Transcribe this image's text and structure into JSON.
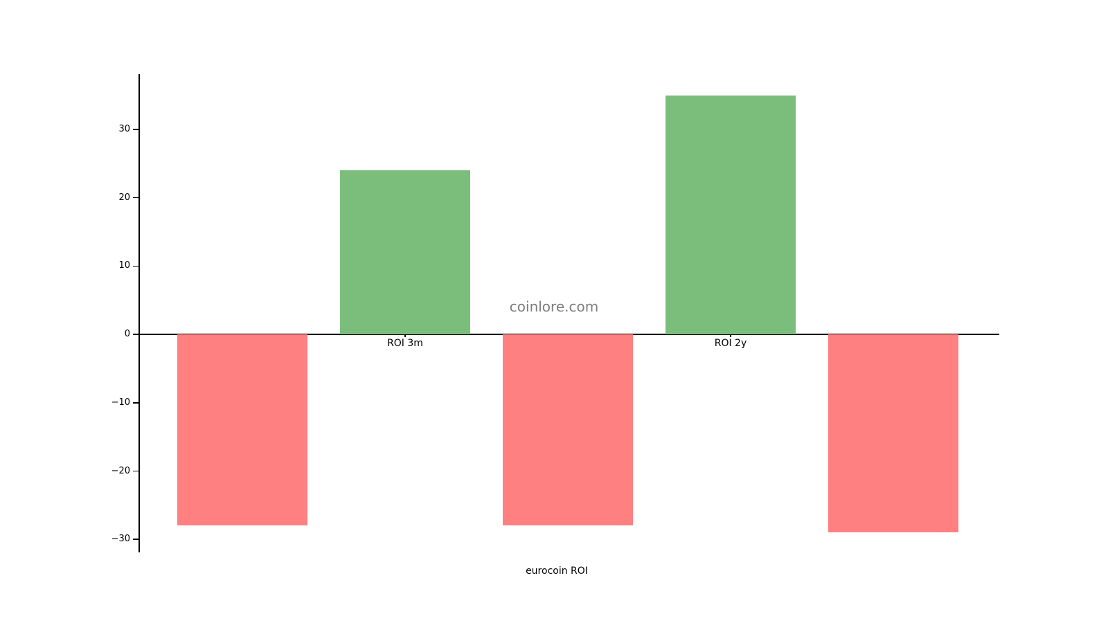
{
  "chart_data": {
    "type": "bar",
    "title": "",
    "xlabel": "eurocoin ROI",
    "ylabel": "",
    "watermark": "coinlore.com",
    "categories": [
      "",
      "ROI 3m",
      "",
      "ROI 2y",
      ""
    ],
    "values": [
      -28,
      24,
      -28,
      35,
      -29
    ],
    "yticks": [
      30,
      20,
      10,
      0,
      -10,
      -20,
      -30
    ],
    "ylim": [
      -31.9,
      38.1
    ],
    "grid": false,
    "legend": "none",
    "colors": {
      "positive": "#7bbe7b",
      "negative": "#ff8080",
      "axis": "#000000",
      "watermark": "#7d7d7d",
      "background": "#ffffff"
    }
  }
}
